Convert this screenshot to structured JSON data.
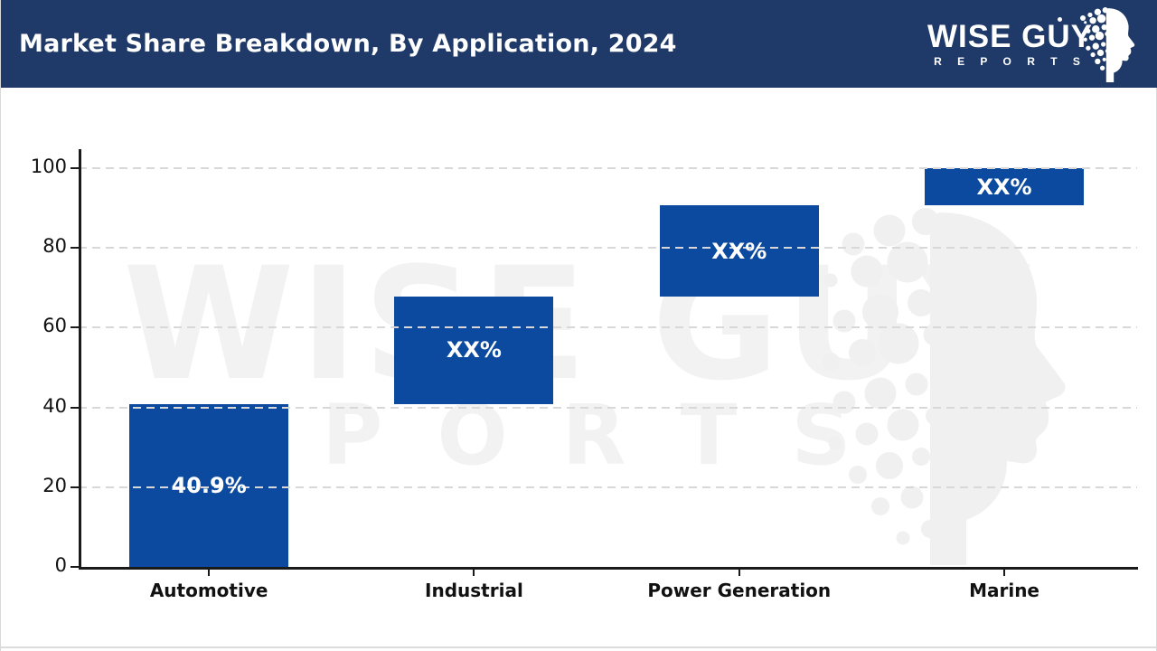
{
  "header": {
    "title": "Market Share Breakdown, By Application, 2024",
    "logo": {
      "line1": "WISE GUY",
      "line2": "R E P O R T S"
    }
  },
  "watermark": {
    "line1": "WISE GUY",
    "line2": "P O R T S"
  },
  "colors": {
    "header_bg": "#1f3a68",
    "bar": "#0c4aa0",
    "grid": "#d8d8d8",
    "bar_label": "#ffffff",
    "axis_text": "#111111",
    "watermark": "#f2f2f2"
  },
  "chart_data": {
    "type": "bar",
    "subtype": "waterfall",
    "title": "Market Share Breakdown, By Application, 2024",
    "categories": [
      "Automotive",
      "Industrial",
      "Power Generation",
      "Marine"
    ],
    "segments": [
      {
        "category": "Automotive",
        "start": 0,
        "end": 40.9,
        "value": 40.9,
        "label": "40.9%"
      },
      {
        "category": "Industrial",
        "start": 40.9,
        "end": 67.8,
        "value": 26.9,
        "label": "XX%"
      },
      {
        "category": "Power Generation",
        "start": 67.8,
        "end": 90.7,
        "value": 22.9,
        "label": "XX%"
      },
      {
        "category": "Marine",
        "start": 90.7,
        "end": 100,
        "value": 9.3,
        "label": "XX%"
      }
    ],
    "ylim": [
      0,
      100
    ],
    "yticks": [
      0,
      20,
      40,
      60,
      80,
      100
    ],
    "grid": true,
    "grid_style": "dashed",
    "legend": "none",
    "bar_color": "#0c4aa0",
    "label_color": "#ffffff"
  }
}
